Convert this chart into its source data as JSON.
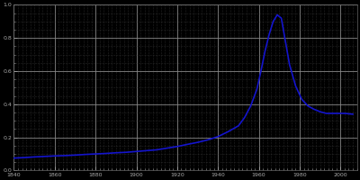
{
  "title": "",
  "background_color": "#000000",
  "grid_major_color": "#888888",
  "grid_minor_color": "#444444",
  "line_color": "#1414cc",
  "line_width": 1.2,
  "xlim": [
    1840,
    2008
  ],
  "ylim": [
    0,
    1.0
  ],
  "years": [
    1840,
    1845,
    1850,
    1855,
    1860,
    1865,
    1870,
    1875,
    1880,
    1885,
    1890,
    1895,
    1900,
    1905,
    1910,
    1915,
    1920,
    1925,
    1930,
    1935,
    1940,
    1945,
    1950,
    1953,
    1956,
    1959,
    1961,
    1963,
    1965,
    1967,
    1969,
    1971,
    1973,
    1975,
    1978,
    1981,
    1984,
    1987,
    1990,
    1993,
    1996,
    1999,
    2002,
    2006
  ],
  "values": [
    0.075,
    0.078,
    0.082,
    0.085,
    0.088,
    0.09,
    0.093,
    0.097,
    0.1,
    0.103,
    0.107,
    0.11,
    0.115,
    0.12,
    0.125,
    0.135,
    0.145,
    0.158,
    0.17,
    0.185,
    0.205,
    0.235,
    0.27,
    0.32,
    0.39,
    0.49,
    0.6,
    0.72,
    0.82,
    0.9,
    0.94,
    0.92,
    0.78,
    0.64,
    0.51,
    0.43,
    0.39,
    0.37,
    0.355,
    0.345,
    0.345,
    0.345,
    0.345,
    0.34
  ],
  "xtick_major_step": 20,
  "xtick_minor_step": 2,
  "ytick_major_step": 0.2,
  "ytick_minor_step": 0.05,
  "tick_label_color": "#aaaaaa",
  "tick_label_size": 4.5,
  "spine_color": "#666666"
}
